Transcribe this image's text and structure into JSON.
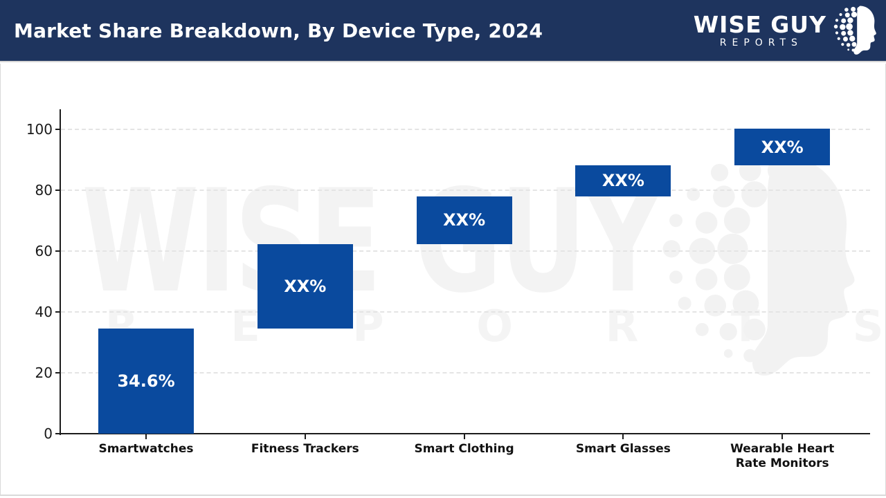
{
  "header": {
    "title": "Market Share Breakdown, By Device Type, 2024",
    "logo_line1": "WISE GUY",
    "logo_line2": "REPORTS",
    "bg_color": "#1e345e"
  },
  "watermark": {
    "line1": "WISE GUY",
    "line2": "R E P O R T S"
  },
  "chart_data": {
    "type": "bar",
    "subtype": "waterfall",
    "title": "Market Share Breakdown, By Device Type, 2024",
    "categories": [
      "Smartwatches",
      "Fitness Trackers",
      "Smart Clothing",
      "Smart Glasses",
      "Wearable Heart Rate Monitors"
    ],
    "category_lines": [
      [
        "Smartwatches"
      ],
      [
        "Fitness Trackers"
      ],
      [
        "Smart Clothing"
      ],
      [
        "Smart Glasses"
      ],
      [
        "Wearable Heart",
        "Rate Monitors"
      ]
    ],
    "segments": [
      {
        "category": "Smartwatches",
        "start": 0,
        "end": 34.6,
        "label": "34.6%"
      },
      {
        "category": "Fitness Trackers",
        "start": 34.6,
        "end": 62.3,
        "label": "XX%"
      },
      {
        "category": "Smart Clothing",
        "start": 62.3,
        "end": 78.0,
        "label": "XX%"
      },
      {
        "category": "Smart Glasses",
        "start": 78.0,
        "end": 88.2,
        "label": "XX%"
      },
      {
        "category": "Wearable Heart Rate Monitors",
        "start": 88.2,
        "end": 100.2,
        "label": "XX%"
      }
    ],
    "y_ticks": [
      0,
      20,
      40,
      60,
      80,
      100
    ],
    "ylim": [
      0,
      105
    ],
    "xlabel": "",
    "ylabel": "",
    "grid": "horizontal-dashed",
    "legend": "none",
    "bar_color": "#0a4a9e",
    "bar_label_color": "#ffffff",
    "axis_color": "#1c1c1c"
  }
}
